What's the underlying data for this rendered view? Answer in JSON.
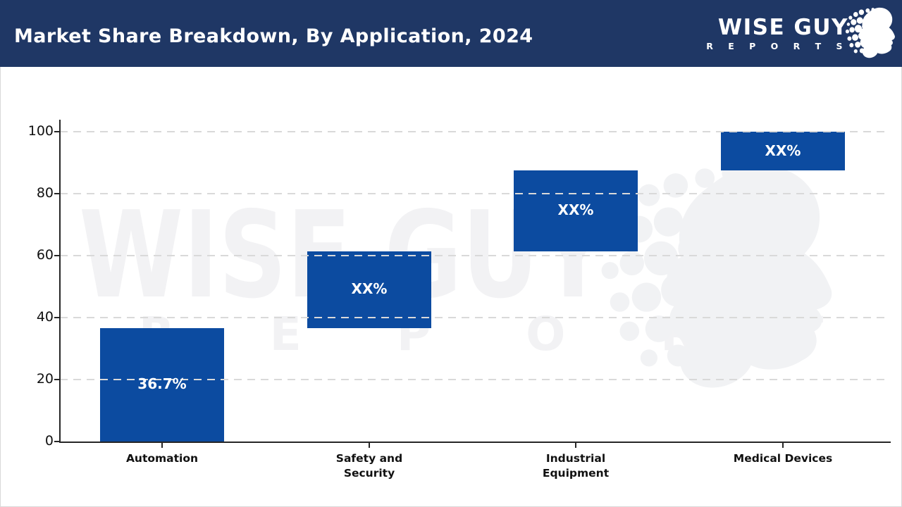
{
  "header": {
    "title": "Market Share Breakdown, By Application, 2024",
    "bg_color": "#1f3765",
    "logo": {
      "line1": "WISE GUY",
      "line2": "R E P O R T S"
    }
  },
  "watermark": {
    "line1": "WISE GUY",
    "line2": "R E P O R T S"
  },
  "chart_data": {
    "type": "bar",
    "subtype": "waterfall",
    "title": "Market Share Breakdown, By Application, 2024",
    "categories": [
      "Automation",
      "Safety and Security",
      "Industrial Equipment",
      "Medical Devices"
    ],
    "category_lines": [
      [
        "Automation"
      ],
      [
        "Safety and",
        "Security"
      ],
      [
        "Industrial",
        "Equipment"
      ],
      [
        "Medical Devices"
      ]
    ],
    "series": [
      {
        "name": "Automation",
        "start": 0,
        "end": 36.7,
        "value": 36.7,
        "label": "36.7%"
      },
      {
        "name": "Safety and Security",
        "start": 36.7,
        "end": 61.4,
        "value": 24.7,
        "label": "XX%"
      },
      {
        "name": "Industrial Equipment",
        "start": 61.4,
        "end": 87.5,
        "value": 26.1,
        "label": "XX%"
      },
      {
        "name": "Medical Devices",
        "start": 87.5,
        "end": 100,
        "value": 12.5,
        "label": "XX%"
      }
    ],
    "xlabel": "",
    "ylabel": "",
    "yticks": [
      0,
      20,
      40,
      60,
      80,
      100
    ],
    "ylim": [
      0,
      104
    ],
    "grid": true,
    "grid_style": "dashed",
    "legend": false,
    "bar_color": "#0c4ba0",
    "bar_label_color": "#ffffff",
    "gridline_color": "#d9d9d9",
    "axis_color": "#262626",
    "tick_label_color": "#111111"
  }
}
